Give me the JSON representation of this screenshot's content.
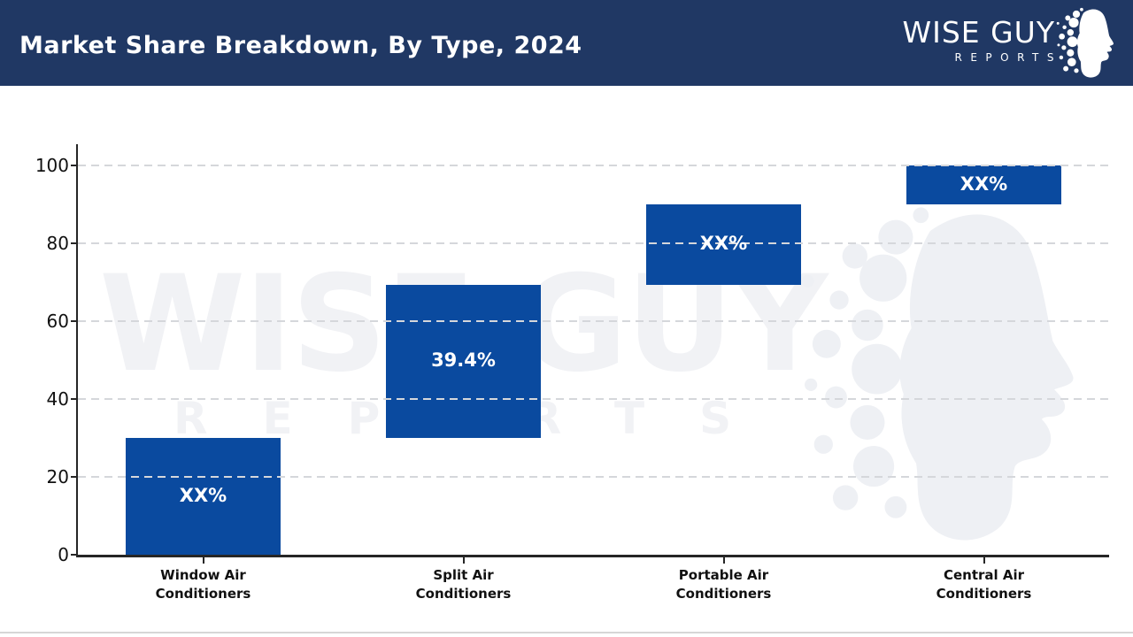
{
  "header": {
    "title": "Market Share Breakdown, By Type, 2024",
    "logo": {
      "line1": "WISE GUY",
      "line2": "REPORTS"
    }
  },
  "watermark": {
    "line1": "WISE GUY",
    "line2": "REPORTS"
  },
  "colors": {
    "header_bg": "#203864",
    "bar": "#0a4a9f",
    "bar_label": "#ffffff",
    "axis": "#262626",
    "grid": "#d5d7db",
    "watermark": "#eef0f4",
    "footer_line": "#d6d6d6"
  },
  "chart_data": {
    "type": "bar",
    "subtype": "waterfall-floating-bars",
    "title": "Market Share Breakdown, By Type, 2024",
    "categories": [
      "Window Air Conditioners",
      "Split Air Conditioners",
      "Portable Air Conditioners",
      "Central Air Conditioners"
    ],
    "series": [
      {
        "name": "Market Share",
        "base_values": [
          0,
          30,
          69.4,
          90
        ],
        "top_values": [
          30,
          69.4,
          90,
          100
        ],
        "segment_sizes": [
          30,
          39.4,
          20.6,
          10
        ],
        "data_labels": [
          "XX%",
          "39.4%",
          "XX%",
          "XX%"
        ]
      }
    ],
    "xlabel": "",
    "ylabel": "",
    "ylim": [
      0,
      100
    ],
    "yticks": [
      0,
      20,
      40,
      60,
      80,
      100
    ],
    "grid": "horizontal dashed, drawn over bars",
    "legend": "none"
  }
}
